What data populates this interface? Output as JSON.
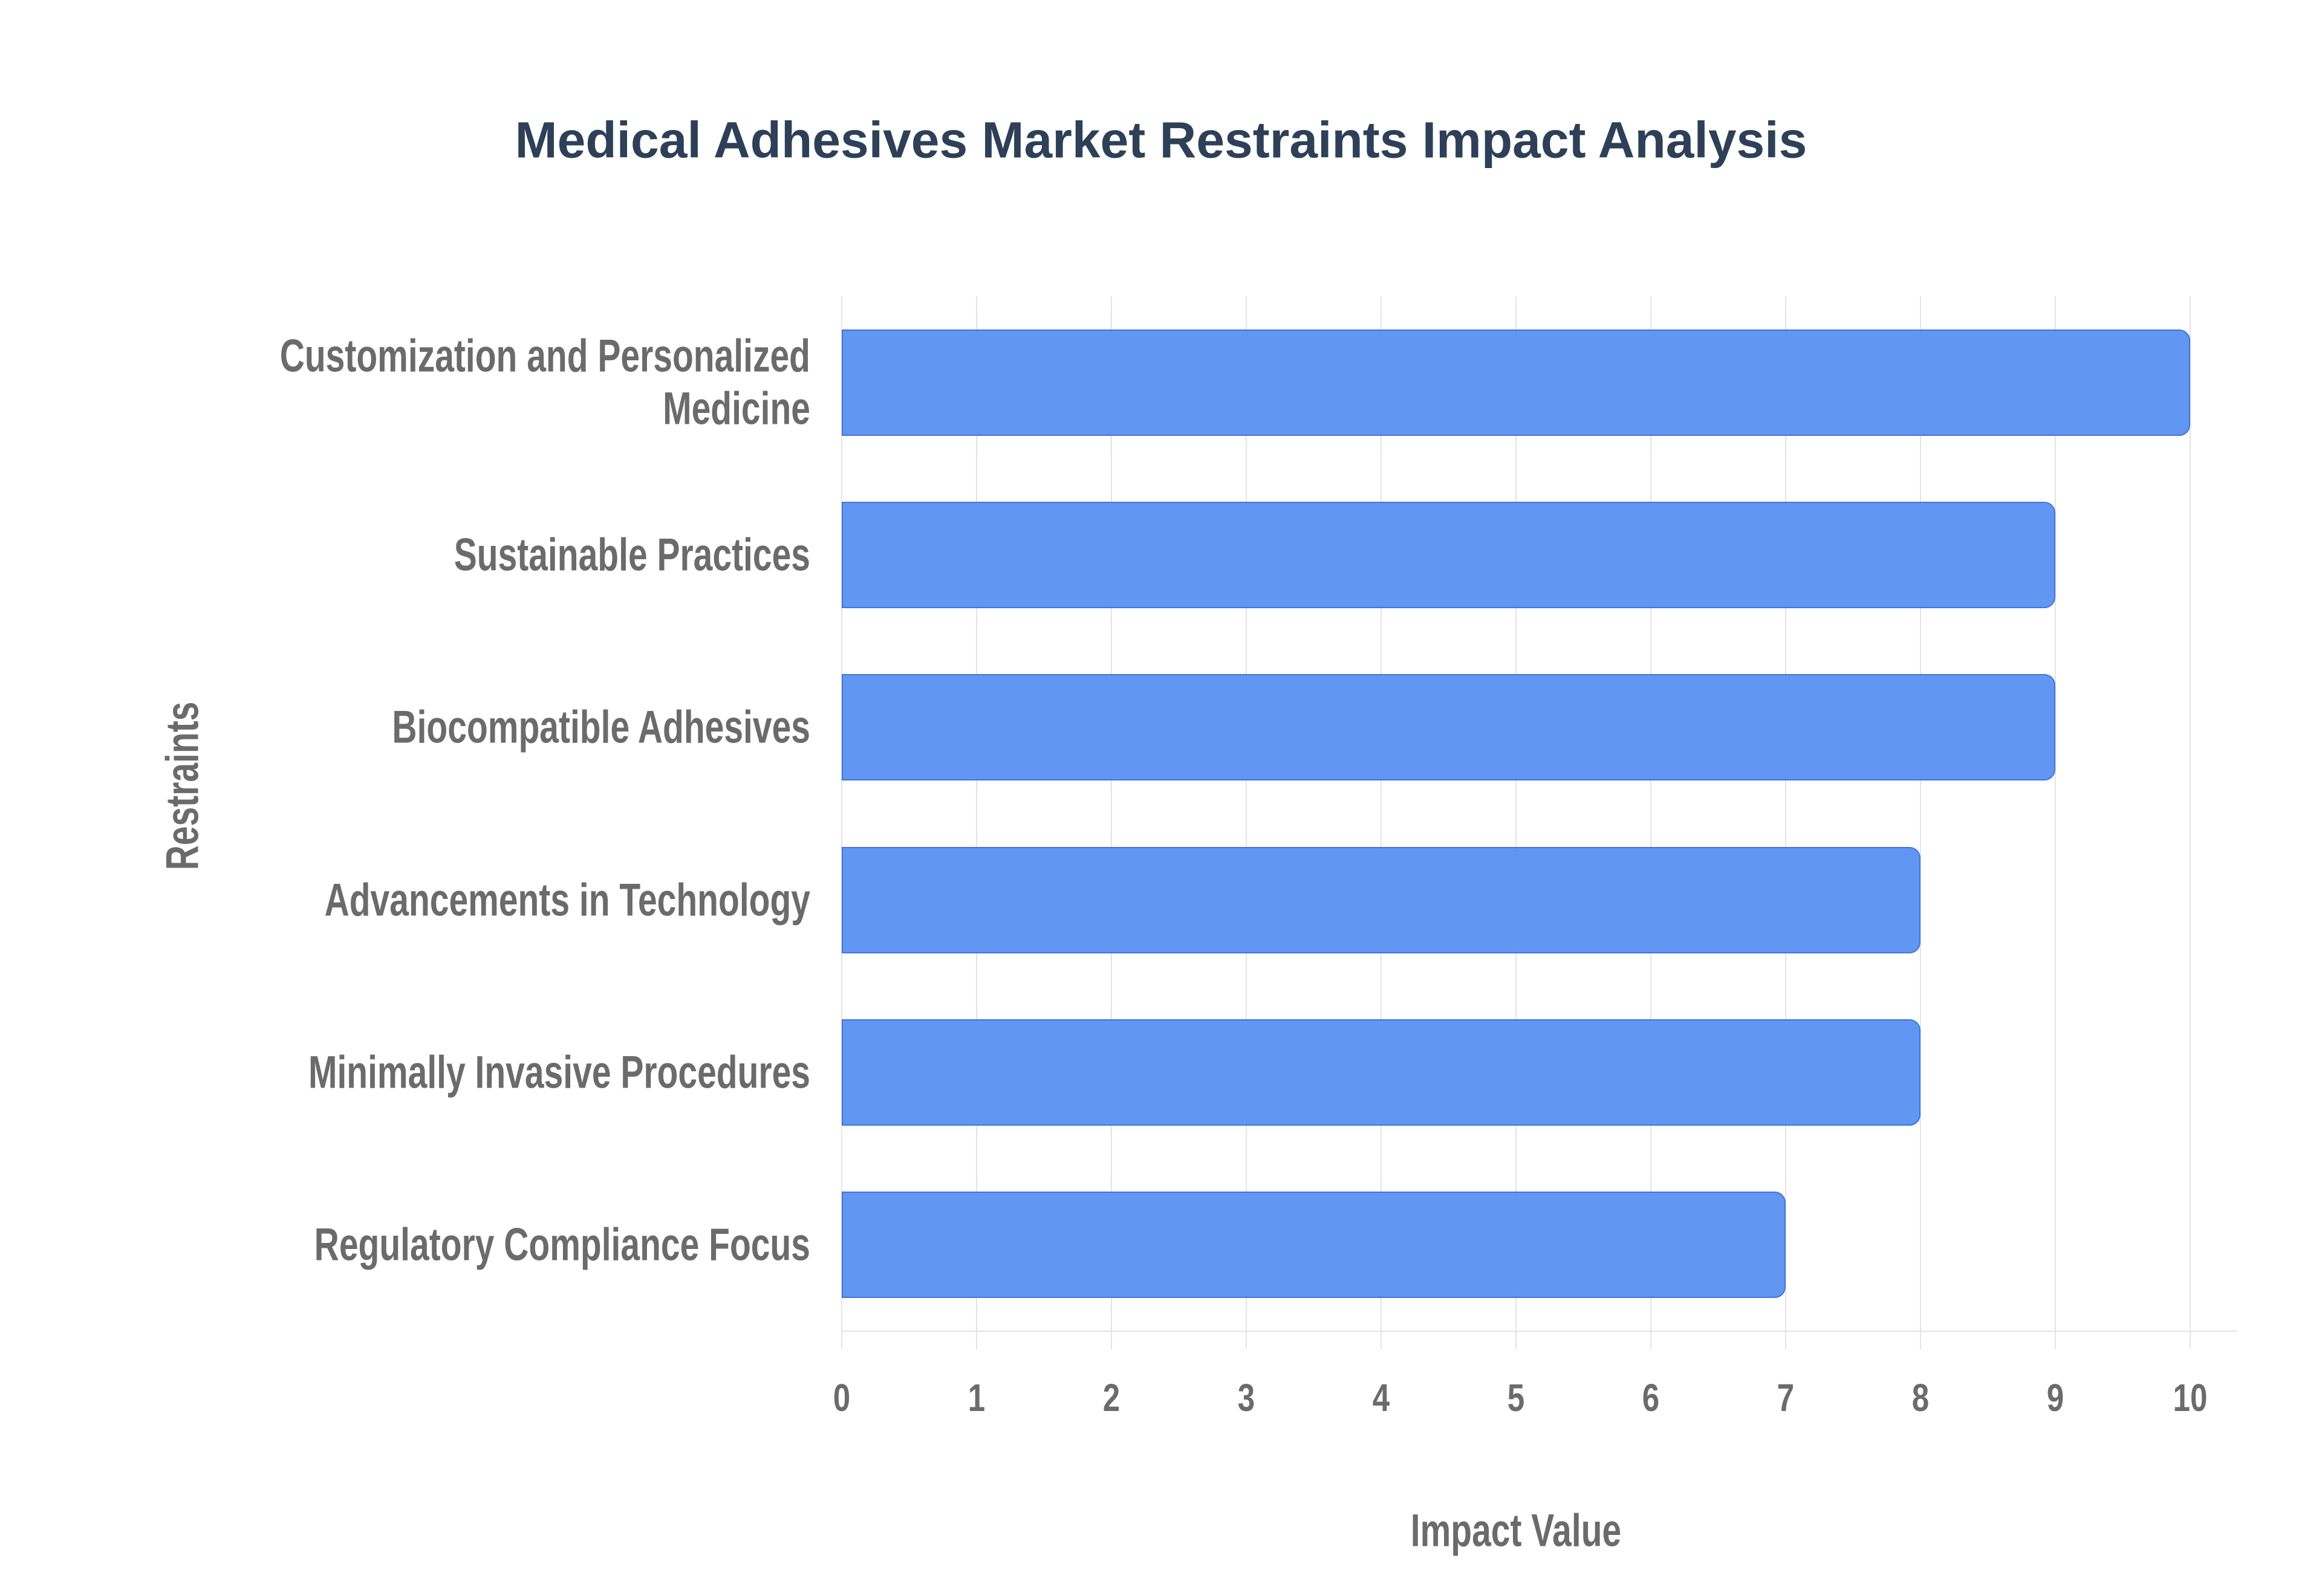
{
  "title": "Medical Adhesives Market Restraints Impact Analysis",
  "chart_data": {
    "type": "bar",
    "orientation": "horizontal",
    "title": "Medical Adhesives Market Restraints Impact Analysis",
    "categories": [
      "Customization and Personalized Medicine",
      "Sustainable Practices",
      "Biocompatible Adhesives",
      "Advancements in Technology",
      "Minimally Invasive Procedures",
      "Regulatory Compliance Focus"
    ],
    "values": [
      10,
      9,
      9,
      8,
      8,
      7
    ],
    "xlabel": "Impact Value",
    "ylabel": "Restraints",
    "xlim": [
      0,
      10
    ],
    "xticks": [
      "0",
      "1",
      "2",
      "3",
      "4",
      "5",
      "6",
      "7",
      "8",
      "9",
      "10"
    ],
    "grid": true,
    "legend": false,
    "colors": {
      "bar_fill": "#5b92f2",
      "bar_border": "#3b6fdd",
      "grid": "#e4e4e4",
      "title_text": "#2e4057",
      "axis_text": "#6b6b6b",
      "background": "#ffffff"
    }
  }
}
